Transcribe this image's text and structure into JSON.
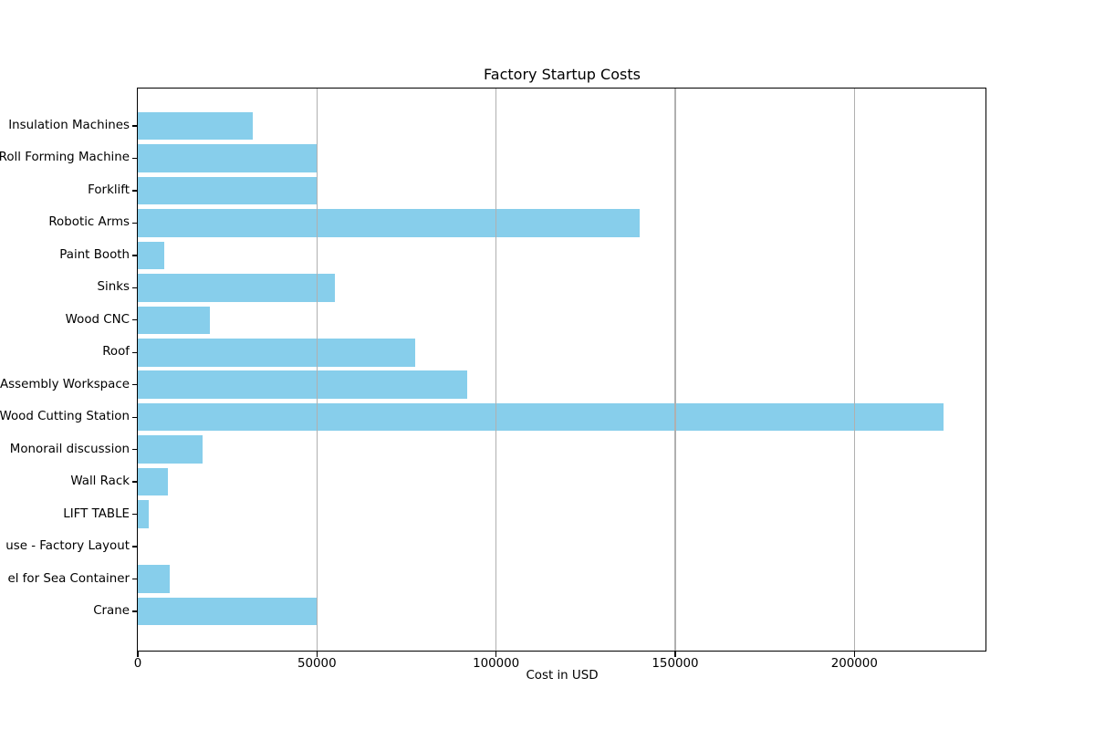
{
  "chart_data": {
    "type": "bar",
    "orientation": "horizontal",
    "title": "Factory Startup Costs",
    "xlabel": "Cost in USD",
    "ylabel": "",
    "categories": [
      "Insulation Machines",
      "Roll Forming Machine",
      "Forklift",
      "Robotic Arms",
      "Paint Booth",
      "Sinks",
      "Wood CNC",
      "Roof",
      "Assembly Workspace",
      "Wood Cutting Station",
      "Monorail discussion",
      "Wall Rack",
      "LIFT TABLE",
      "use - Factory Layout",
      "el for Sea Container",
      "Crane"
    ],
    "values": [
      32000,
      50000,
      50000,
      140000,
      7500,
      55000,
      20000,
      77500,
      92000,
      225000,
      18000,
      8500,
      3000,
      0,
      8800,
      50000
    ],
    "x_ticks": [
      0,
      50000,
      100000,
      150000,
      200000
    ],
    "x_tick_labels": [
      "0",
      "50000",
      "100000",
      "150000",
      "200000"
    ],
    "xlim": [
      0,
      236600
    ],
    "bar_color": "#87ceeb",
    "grid_color": "#b0b0b0",
    "axis_color": "#000000",
    "grid": "vertical-gridlines-over-bars",
    "legend_position": "none"
  }
}
